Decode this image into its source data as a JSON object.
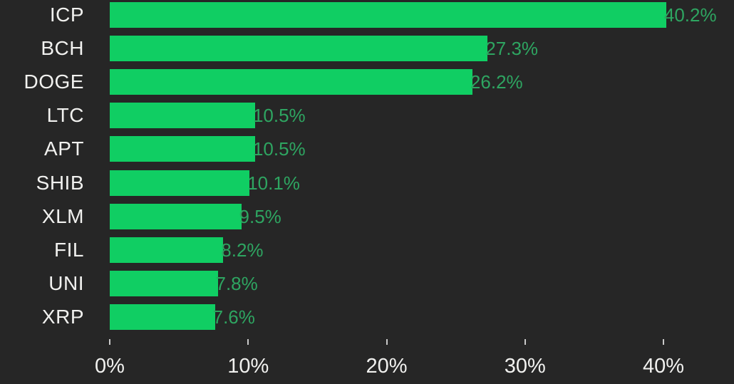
{
  "chart_data": {
    "type": "bar",
    "orientation": "horizontal",
    "categories": [
      "ICP",
      "BCH",
      "DOGE",
      "LTC",
      "APT",
      "SHIB",
      "XLM",
      "FIL",
      "UNI",
      "XRP"
    ],
    "values": [
      40.2,
      27.3,
      26.2,
      10.5,
      10.5,
      10.1,
      9.5,
      8.2,
      7.8,
      7.6
    ],
    "value_labels": [
      "40.2%",
      "27.3%",
      "26.2%",
      "10.5%",
      "10.5%",
      "10.1%",
      "9.5%",
      "8.2%",
      "7.8%",
      "7.6%"
    ],
    "x_ticks": [
      {
        "value": 0,
        "label": "0%"
      },
      {
        "value": 10,
        "label": "10%"
      },
      {
        "value": 20,
        "label": "20%"
      },
      {
        "value": 30,
        "label": "30%"
      },
      {
        "value": 40,
        "label": "40%"
      }
    ],
    "xlim": [
      0,
      40
    ],
    "grid": false,
    "legend": false,
    "title": "",
    "xlabel": "",
    "ylabel": "",
    "colors": {
      "background": "#262626",
      "bar_fill": "#10ce63",
      "value_label": "#2ea561",
      "category_label": "#f1f1ef",
      "axis_label": "#f1f1ef",
      "tick_mark": "#c9c9c9"
    }
  }
}
